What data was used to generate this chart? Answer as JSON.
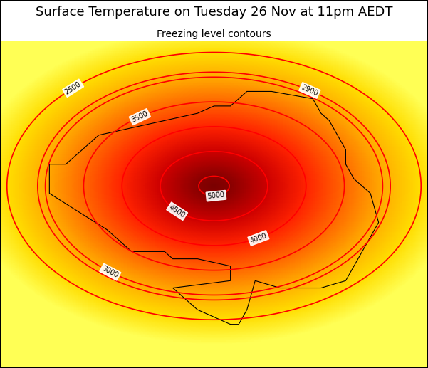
{
  "title": "Surface Temperature on Tuesday 26 Nov at 11pm AEDT",
  "subtitle": "Freezing level contours",
  "title_fontsize": 13,
  "subtitle_fontsize": 10,
  "bg_color": "#c8d4e8",
  "ocean_color": "#c8d4e8",
  "map_bg": "#c8d4e8",
  "fig_bg": "#ffffff",
  "border_color": "#000000",
  "contour_color": "#ff0000",
  "contour_label_color": "#ff0000",
  "state_border_color": "#000000",
  "figsize": [
    6.01,
    5.17
  ],
  "dpi": 100
}
